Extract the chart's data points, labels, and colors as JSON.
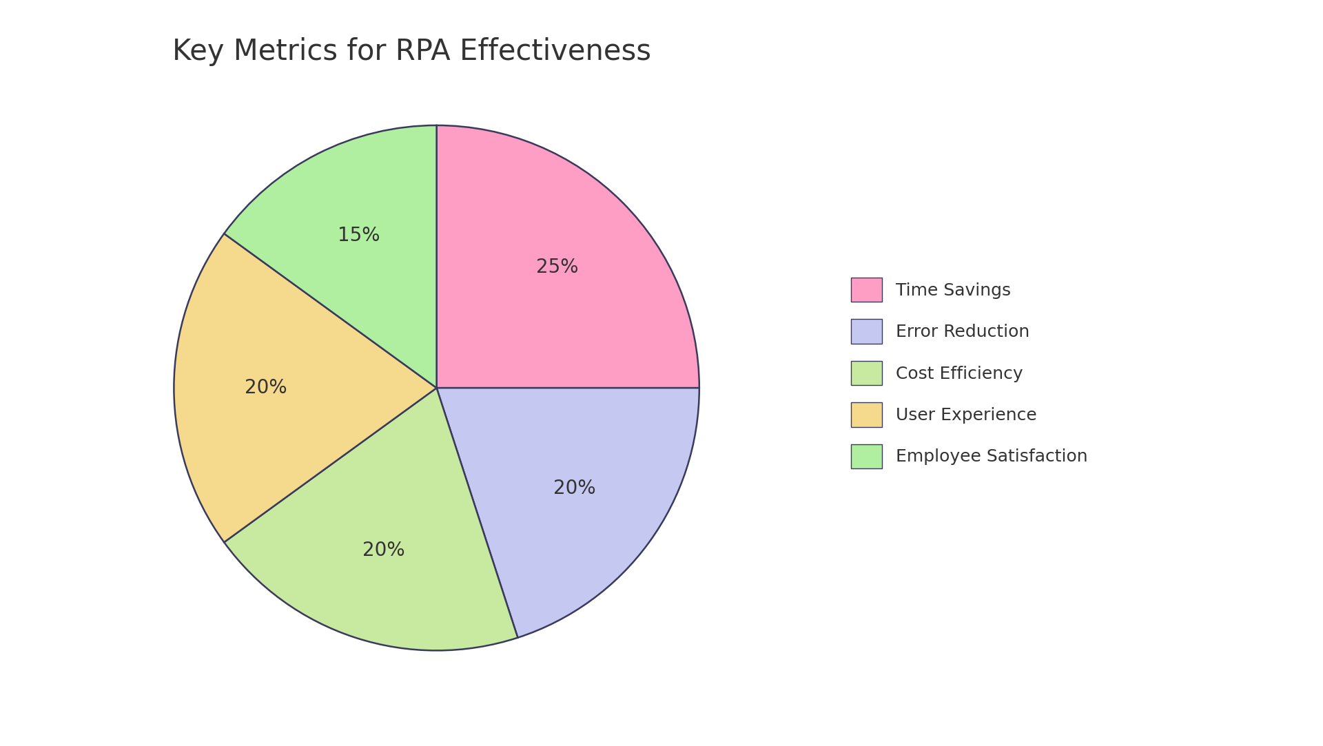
{
  "title": "Key Metrics for RPA Effectiveness",
  "labels": [
    "Time Savings",
    "Error Reduction",
    "Cost Efficiency",
    "User Experience",
    "Employee Satisfaction"
  ],
  "values": [
    25,
    20,
    20,
    20,
    15
  ],
  "colors": [
    "#FF9EC4",
    "#C5C8F0",
    "#C8EAA0",
    "#F5D98C",
    "#B0EFA0"
  ],
  "edge_color": "#3a3a5c",
  "edge_width": 1.8,
  "background_color": "#ffffff",
  "title_fontsize": 30,
  "title_color": "#333333",
  "label_fontsize": 20,
  "legend_fontsize": 18,
  "startangle": 90
}
